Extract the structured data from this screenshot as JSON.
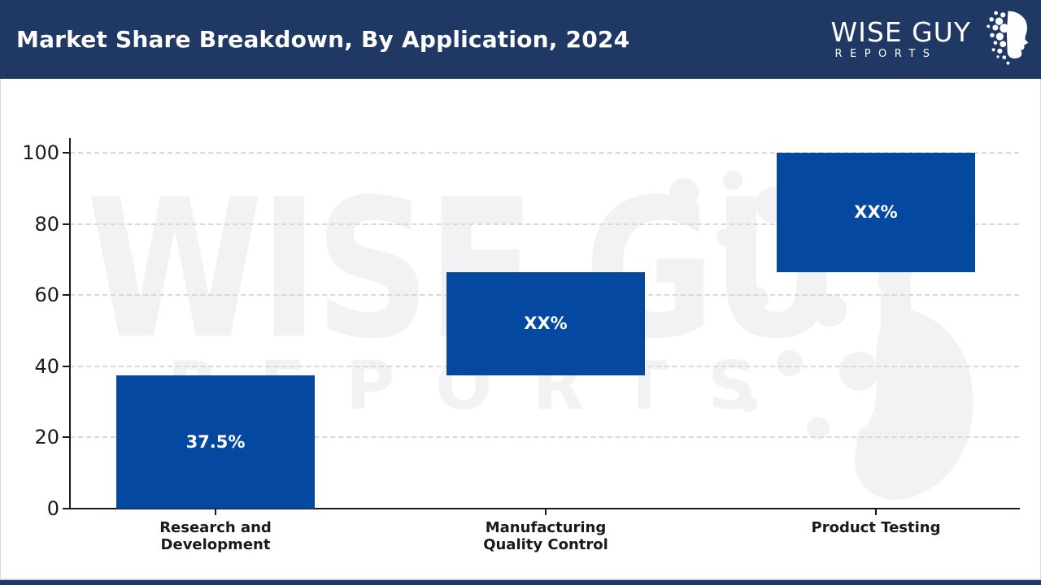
{
  "header": {
    "title": "Market Share Breakdown, By Application, 2024",
    "logo": {
      "line1": "WISE GUY",
      "line2": "REPORTS"
    }
  },
  "watermark": {
    "line1": "WISE GUY",
    "line2": "REPORTS"
  },
  "colors": {
    "header_bg": "#1f3864",
    "bar": "#05489f",
    "grid": "#d9d9d9",
    "axis": "#1a1a1a",
    "bar_label": "#ffffff",
    "watermark": "#f2f2f4"
  },
  "chart_data": {
    "type": "bar",
    "subtype": "waterfall",
    "title": "Market Share Breakdown, By Application, 2024",
    "categories": [
      [
        "Research and",
        "Development"
      ],
      [
        "Manufacturing",
        "Quality Control"
      ],
      [
        "Product Testing"
      ]
    ],
    "segments": [
      {
        "category": "Research and Development",
        "start": 0,
        "end": 37.5,
        "label": "37.5%"
      },
      {
        "category": "Manufacturing Quality Control",
        "start": 37.5,
        "end": 66.5,
        "label": "XX%"
      },
      {
        "category": "Product Testing",
        "start": 66.5,
        "end": 100,
        "label": "XX%"
      }
    ],
    "yticks": [
      0,
      20,
      40,
      60,
      80,
      100
    ],
    "ylim": [
      0,
      100
    ],
    "xlabel": "",
    "ylabel": "",
    "grid": "horizontal-dashed",
    "legend": "none"
  }
}
